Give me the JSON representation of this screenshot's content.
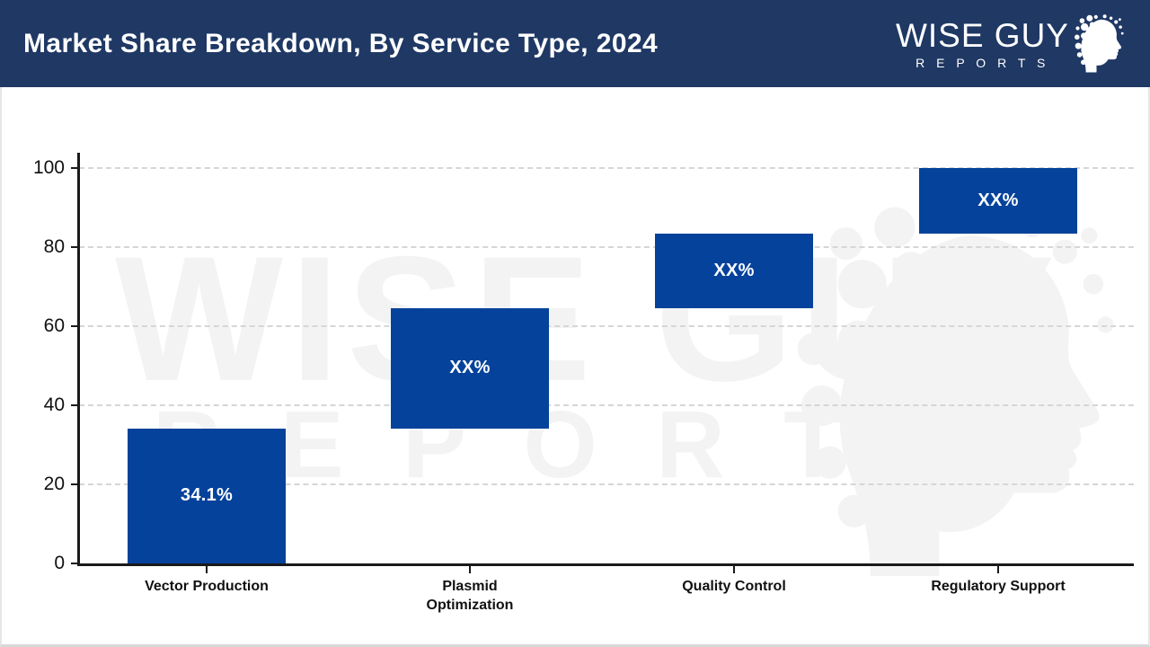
{
  "header": {
    "title": "Market Share Breakdown, By Service Type, 2024",
    "logo": {
      "wordmark": "WISE GUY",
      "subtitle": "R E P O R T S"
    }
  },
  "watermark": {
    "wordmark": "WISE GUY",
    "subtitle": "R E P O R T S"
  },
  "colors": {
    "header_bg": "#1f3864",
    "bar": "#05429b",
    "grid": "#d6d6d6",
    "axis": "#1a1a1a",
    "watermark": "#f3f3f3"
  },
  "chart_data": {
    "type": "bar",
    "variant": "waterfall",
    "title": "Market Share Breakdown, By Service Type, 2024",
    "categories": [
      "Vector Production",
      "Plasmid Optimization",
      "Quality Control",
      "Regulatory Support"
    ],
    "category_lines": [
      [
        "Vector Production"
      ],
      [
        "Plasmid",
        "Optimization"
      ],
      [
        "Quality Control"
      ],
      [
        "Regulatory Support"
      ]
    ],
    "segments": [
      {
        "category": "Vector Production",
        "start": 0,
        "end": 34.1,
        "size": 34.1,
        "label": "34.1%"
      },
      {
        "category": "Plasmid Optimization",
        "start": 34.1,
        "end": 64.6,
        "size": 30.5,
        "label": "XX%"
      },
      {
        "category": "Quality Control",
        "start": 64.6,
        "end": 83.4,
        "size": 18.8,
        "label": "XX%"
      },
      {
        "category": "Regulatory Support",
        "start": 83.4,
        "end": 100,
        "size": 16.6,
        "label": "XX%"
      }
    ],
    "y_ticks": [
      0,
      20,
      40,
      60,
      80,
      100
    ],
    "ylim": [
      0,
      104
    ],
    "xlabel": "",
    "ylabel": "",
    "grid": "dashed-horizontal",
    "legend": "none"
  }
}
